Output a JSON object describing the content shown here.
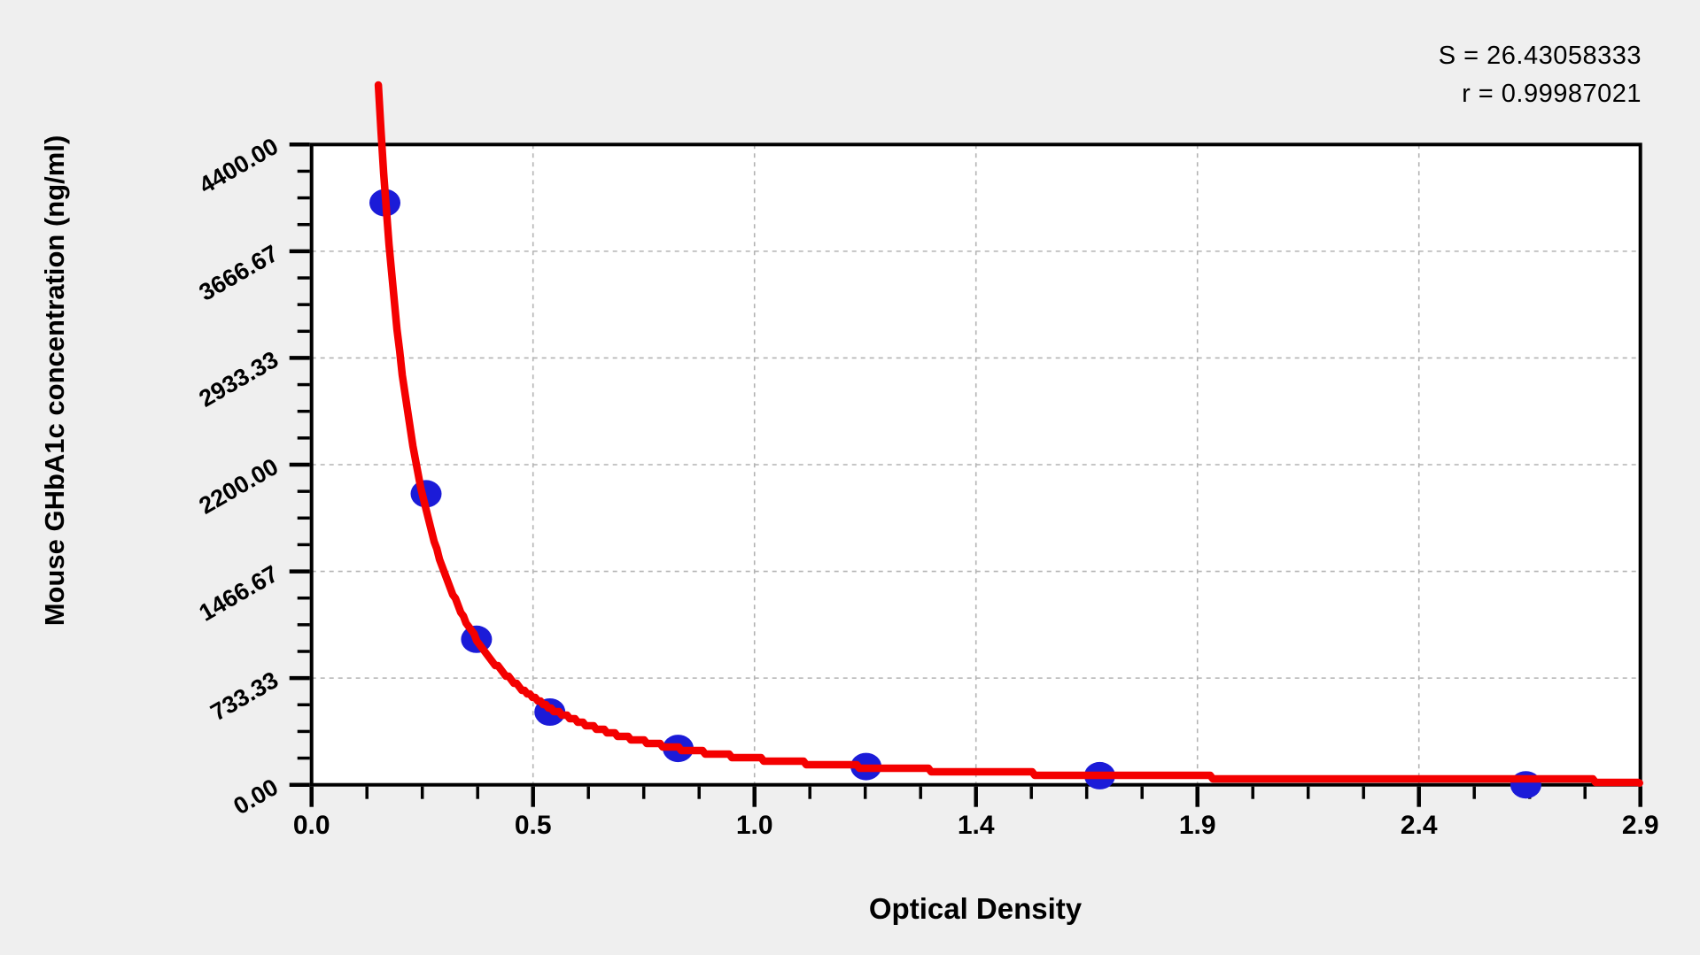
{
  "stats": {
    "s_label": "S = 26.43058333",
    "r_label": "r = 0.99987021"
  },
  "chart_data": {
    "type": "scatter",
    "title": "",
    "xlabel": "Optical Density",
    "ylabel": "Mouse GHbA1c concentration (ng/ml)",
    "x_tick_labels": [
      "0.0",
      "0.5",
      "1.0",
      "1.4",
      "1.9",
      "2.4",
      "2.9"
    ],
    "y_tick_labels": [
      "0.00",
      "733.33",
      "1466.67",
      "2200.00",
      "2933.33",
      "3666.67",
      "4400.00"
    ],
    "xlim": [
      0,
      2.9
    ],
    "ylim": [
      0,
      4400
    ],
    "grid": "dashed gray gridlines at every major tick",
    "legend": "none",
    "series": [
      {
        "name": "standard-points",
        "marker": "filled circle",
        "points": [
          {
            "od": 0.16,
            "concentration": 4000
          },
          {
            "od": 0.25,
            "concentration": 2000
          },
          {
            "od": 0.36,
            "concentration": 1000
          },
          {
            "od": 0.52,
            "concentration": 500
          },
          {
            "od": 0.8,
            "concentration": 250
          },
          {
            "od": 1.21,
            "concentration": 125
          },
          {
            "od": 1.72,
            "concentration": 62.5
          },
          {
            "od": 2.65,
            "concentration": 0
          }
        ]
      }
    ],
    "fit_curve": {
      "name": "standard-curve-fit",
      "shape": "decreasing power/hyperbolic decay, conc ≈ 170.3 × OD^-1.734",
      "S": 26.43058333,
      "r": 0.99987021,
      "od_range": [
        0.146,
        2.9
      ]
    },
    "colors": {
      "point": "#1b1bd8",
      "curve": "#f40000",
      "grid": "#b3b3b3",
      "axis": "#000000",
      "plot_bg": "#ffffff",
      "page_bg": "#efefef"
    }
  }
}
